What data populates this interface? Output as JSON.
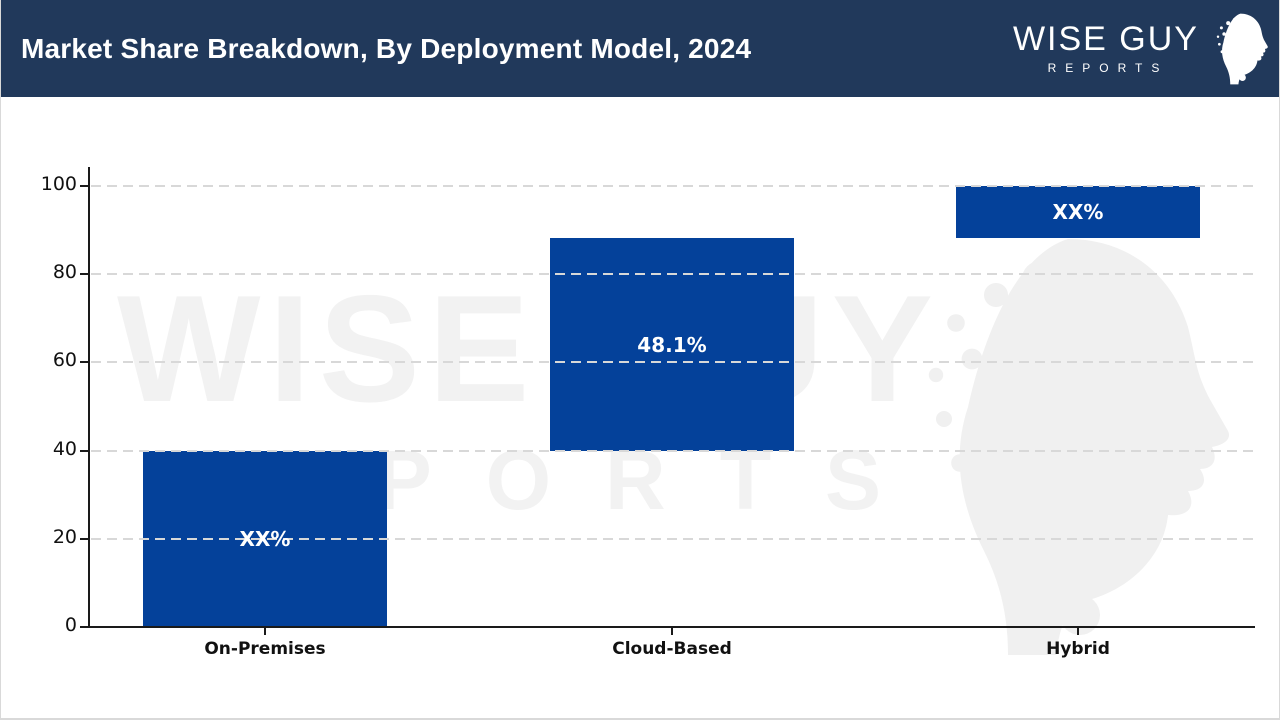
{
  "header": {
    "title": "Market Share Breakdown, By Deployment Model, 2024",
    "logo": {
      "name_top": "WISE GUY",
      "name_bottom": "REPORTS"
    }
  },
  "watermark": {
    "line1": "WISE GUY",
    "line2": "REPORTS"
  },
  "chart_data": {
    "type": "bar",
    "variant": "waterfall",
    "title": "Market Share Breakdown, By Deployment Model, 2024",
    "categories": [
      "On-Premises",
      "Cloud-Based",
      "Hybrid"
    ],
    "segments": [
      {
        "category": "On-Premises",
        "start": 0,
        "end": 40,
        "label": "XX%"
      },
      {
        "category": "Cloud-Based",
        "start": 40,
        "end": 88.1,
        "label": "48.1%"
      },
      {
        "category": "Hybrid",
        "start": 88.1,
        "end": 100,
        "label": "XX%"
      }
    ],
    "values": [
      40,
      48.1,
      11.9
    ],
    "labels": [
      "XX%",
      "48.1%",
      "XX%"
    ],
    "ylim": [
      0,
      100
    ],
    "yticks": [
      0,
      20,
      40,
      60,
      80,
      100
    ],
    "xlabel": "",
    "ylabel": "",
    "grid": {
      "horizontal": true,
      "style": "dashed",
      "on_top_of_bars": true
    },
    "legend": "none",
    "bar_color": "#04419a"
  },
  "colors": {
    "header_bg": "#21395b",
    "bar": "#04419a",
    "axis": "#1a1a1a",
    "grid": "#d8d8d8",
    "watermark": "#f2f2f2",
    "label_text": "#ffffff",
    "tick_text": "#111111"
  }
}
